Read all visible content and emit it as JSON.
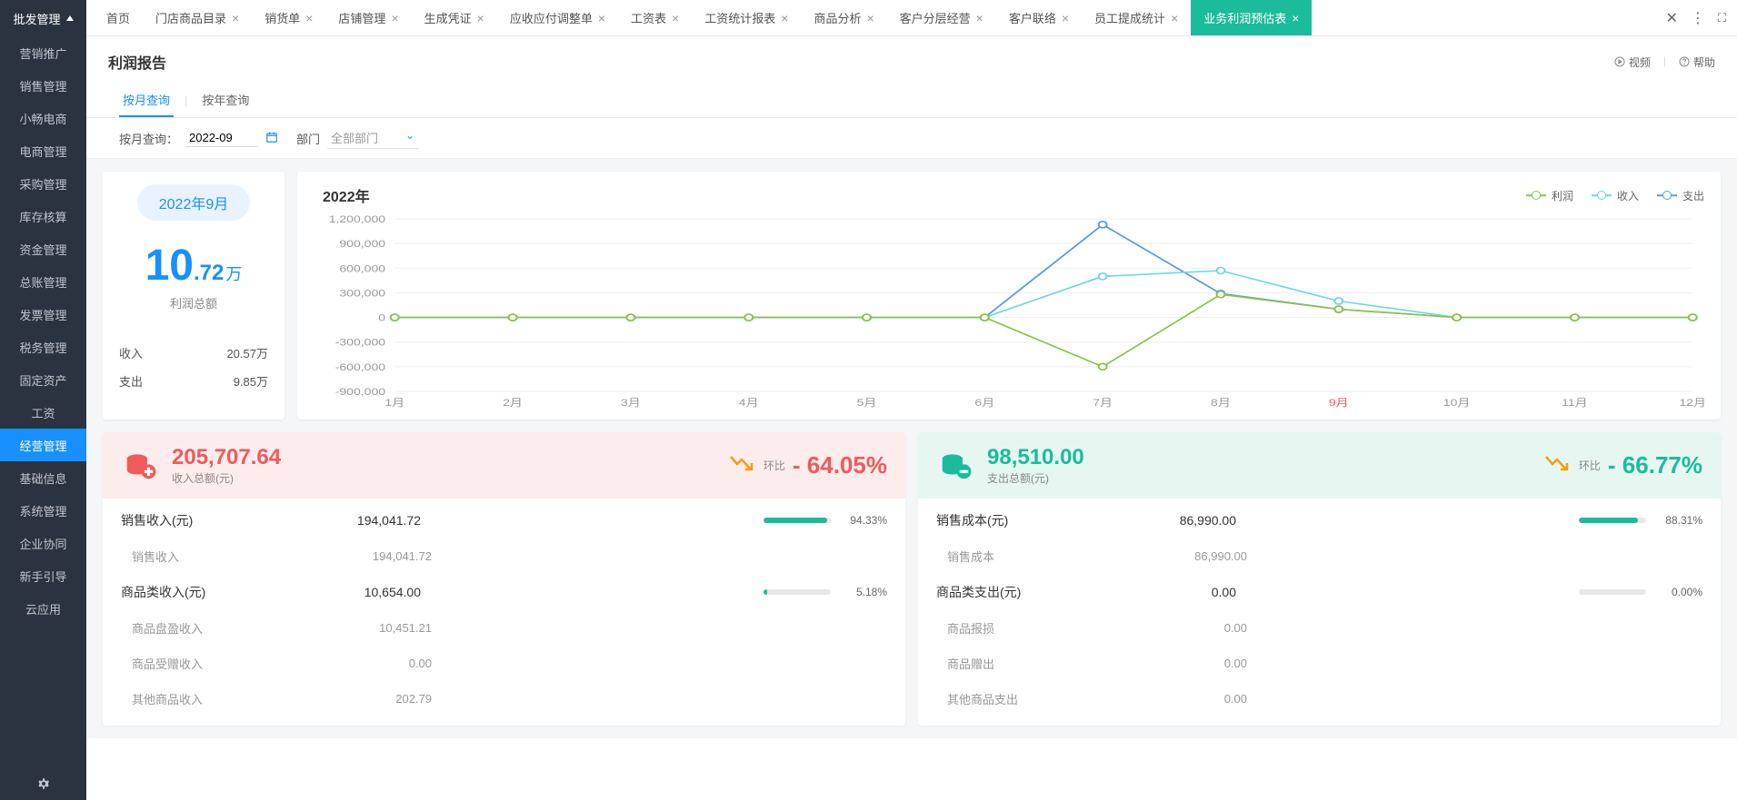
{
  "sidebar": {
    "header": "批发管理",
    "items": [
      {
        "label": "营销推广"
      },
      {
        "label": "销售管理"
      },
      {
        "label": "小畅电商"
      },
      {
        "label": "电商管理"
      },
      {
        "label": "采购管理"
      },
      {
        "label": "库存核算"
      },
      {
        "label": "资金管理"
      },
      {
        "label": "总账管理"
      },
      {
        "label": "发票管理"
      },
      {
        "label": "税务管理"
      },
      {
        "label": "固定资产"
      },
      {
        "label": "工资"
      },
      {
        "label": "经营管理",
        "active": true
      },
      {
        "label": "基础信息"
      },
      {
        "label": "系统管理"
      },
      {
        "label": "企业协同"
      },
      {
        "label": "新手引导"
      },
      {
        "label": "云应用"
      }
    ]
  },
  "tabs": [
    {
      "label": "首页",
      "closable": false
    },
    {
      "label": "门店商品目录",
      "closable": true
    },
    {
      "label": "销货单",
      "closable": true
    },
    {
      "label": "店铺管理",
      "closable": true
    },
    {
      "label": "生成凭证",
      "closable": true
    },
    {
      "label": "应收应付调整单",
      "closable": true
    },
    {
      "label": "工资表",
      "closable": true
    },
    {
      "label": "工资统计报表",
      "closable": true
    },
    {
      "label": "商品分析",
      "closable": true
    },
    {
      "label": "客户分层经营",
      "closable": true
    },
    {
      "label": "客户联络",
      "closable": true
    },
    {
      "label": "员工提成统计",
      "closable": true
    },
    {
      "label": "业务利润预估表",
      "closable": true,
      "active": true
    }
  ],
  "page": {
    "title": "利润报告",
    "actions": {
      "video": "视频",
      "help": "帮助"
    }
  },
  "subTabs": [
    {
      "label": "按月查询",
      "active": true
    },
    {
      "label": "按年查询"
    }
  ],
  "filters": {
    "monthLabel": "按月查询：",
    "monthValue": "2022-09",
    "deptLabel": "部门",
    "deptValue": "全部部门"
  },
  "summary": {
    "period": "2022年9月",
    "profitInt": "10",
    "profitFrac": ".72",
    "profitUnit": "万",
    "profitLabel": "利润总额",
    "incomeLabel": "收入",
    "incomeValue": "20.57万",
    "expenseLabel": "支出",
    "expenseValue": "9.85万"
  },
  "chart": {
    "title": "2022年",
    "legend": {
      "profit": "利润",
      "income": "收入",
      "expense": "支出"
    },
    "months": [
      "1月",
      "2月",
      "3月",
      "4月",
      "5月",
      "6月",
      "7月",
      "8月",
      "9月",
      "10月",
      "11月",
      "12月"
    ],
    "currentIndex": 8,
    "yticks": [
      -900000,
      -600000,
      -300000,
      0,
      300000,
      600000,
      900000,
      1200000
    ],
    "yLabels": [
      "-900,000",
      "-600,000",
      "-300,000",
      "0",
      "300,000",
      "600,000",
      "900,000",
      "1,200,000"
    ],
    "ylim": [
      -900000,
      1200000
    ],
    "series": {
      "profit": {
        "color": "#8bc34a",
        "data": [
          0,
          0,
          0,
          0,
          0,
          0,
          -600000,
          280000,
          100000,
          0,
          0,
          0
        ]
      },
      "income": {
        "color": "#6dd5e6",
        "data": [
          0,
          0,
          0,
          0,
          0,
          0,
          500000,
          570000,
          200000,
          0,
          0,
          0
        ]
      },
      "expense": {
        "color": "#5b9bd5",
        "data": [
          0,
          0,
          0,
          0,
          0,
          0,
          1130000,
          290000,
          100000,
          0,
          0,
          0
        ]
      }
    },
    "grid_color": "#eeeeee",
    "axis_label_color": "#999999",
    "highlight_color": "#f05a5a",
    "background": "#ffffff"
  },
  "income": {
    "amount": "205,707.64",
    "subLabel": "收入总额(元)",
    "deltaLabel": "环比",
    "deltaValue": "- 64.05%",
    "rows": [
      {
        "type": "main",
        "label": "销售收入(元)",
        "value": "194,041.72",
        "pct": 94.33
      },
      {
        "type": "sub",
        "label": "销售收入",
        "value": "194,041.72"
      },
      {
        "type": "main",
        "label": "商品类收入(元)",
        "value": "10,654.00",
        "pct": 5.18
      },
      {
        "type": "sub",
        "label": "商品盘盈收入",
        "value": "10,451.21"
      },
      {
        "type": "sub",
        "label": "商品受赠收入",
        "value": "0.00"
      },
      {
        "type": "sub",
        "label": "其他商品收入",
        "value": "202.79"
      }
    ]
  },
  "expense": {
    "amount": "98,510.00",
    "subLabel": "支出总额(元)",
    "deltaLabel": "环比",
    "deltaValue": "- 66.77%",
    "rows": [
      {
        "type": "main",
        "label": "销售成本(元)",
        "value": "86,990.00",
        "pct": 88.31
      },
      {
        "type": "sub",
        "label": "销售成本",
        "value": "86,990.00"
      },
      {
        "type": "main",
        "label": "商品类支出(元)",
        "value": "0.00",
        "pct": 0.0
      },
      {
        "type": "sub",
        "label": "商品报损",
        "value": "0.00"
      },
      {
        "type": "sub",
        "label": "商品赠出",
        "value": "0.00"
      },
      {
        "type": "sub",
        "label": "其他商品支出",
        "value": "0.00"
      }
    ]
  },
  "colors": {
    "income": "#f05a5a",
    "expense": "#1abc9c",
    "accent": "#1890ff"
  }
}
